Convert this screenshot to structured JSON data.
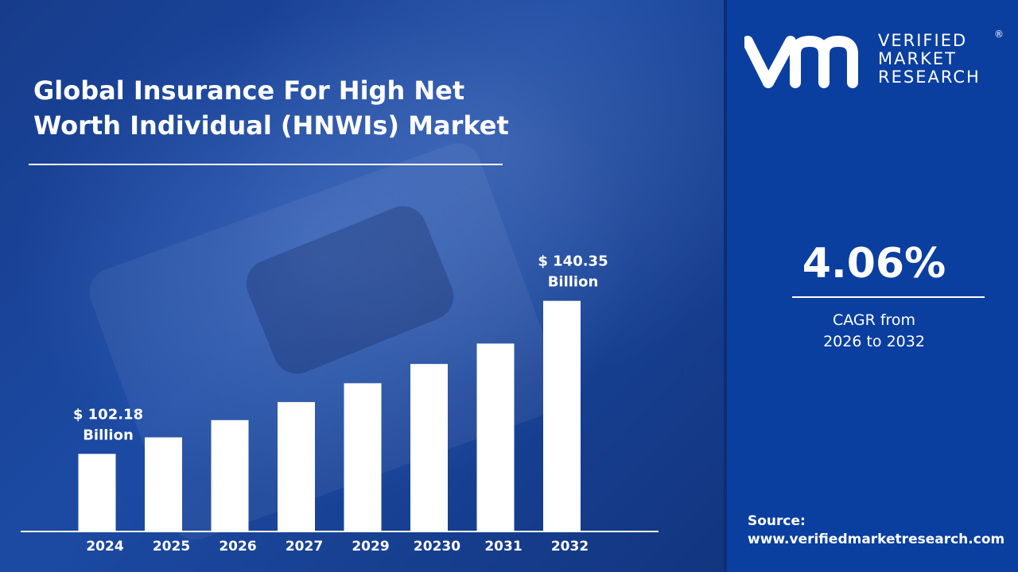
{
  "title": {
    "line1": "Global Insurance For High Net",
    "line2": "Worth Individual (HNWIs) Market"
  },
  "chart_data": {
    "type": "bar",
    "categories": [
      "2024",
      "2025",
      "2026",
      "2027",
      "2029",
      "20230",
      "2031",
      "2032"
    ],
    "values": [
      102.18,
      106.3,
      110.6,
      115.1,
      119.8,
      124.6,
      129.7,
      140.35
    ],
    "data_labels": [
      {
        "index": 0,
        "line1": "$ 102.18",
        "line2": "Billion"
      },
      {
        "index": 7,
        "line1": "$ 140.35",
        "line2": "Billion"
      }
    ],
    "ylim": [
      85,
      150
    ],
    "grid": false,
    "colors": {
      "bar": "#ffffff",
      "background": "#1c4aa3"
    }
  },
  "cagr": {
    "value": "4.06%",
    "label_line1": "CAGR from",
    "label_line2": "2026 to 2032"
  },
  "brand": {
    "mark": "vm",
    "line1": "VERIFIED",
    "line2": "MARKET",
    "line3": "RESEARCH",
    "registered": "®"
  },
  "source": {
    "label": "Source:",
    "url": "www.verifiedmarketresearch.com"
  },
  "colors": {
    "panel_right": "#0a3fa0",
    "panel_left": "#1c4aa3",
    "text": "#ffffff"
  }
}
